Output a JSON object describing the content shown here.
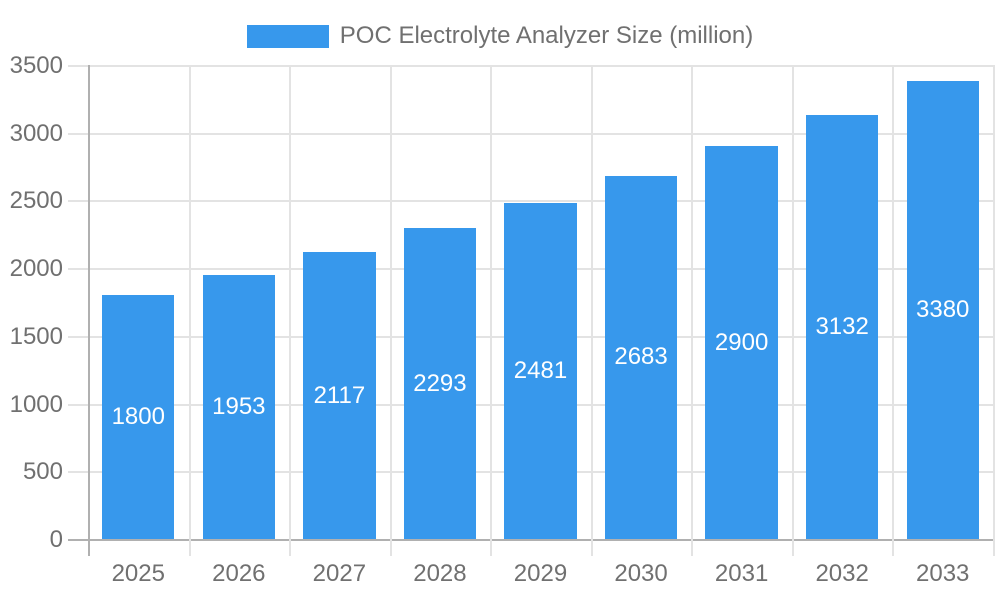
{
  "legend": {
    "label": "POC Electrolyte Analyzer Size (million)"
  },
  "colors": {
    "bar": "#3798EC",
    "grid": "#E3E3E3",
    "axis": "#B0B0B0",
    "text": "#707070",
    "value_text": "#FFFFFF",
    "background": "#FFFFFF"
  },
  "chart_data": {
    "type": "bar",
    "title": "POC Electrolyte Analyzer Size (million)",
    "categories": [
      "2025",
      "2026",
      "2027",
      "2028",
      "2029",
      "2030",
      "2031",
      "2032",
      "2033"
    ],
    "values": [
      1800,
      1953,
      2117,
      2293,
      2481,
      2683,
      2900,
      3132,
      3380
    ],
    "series_name": "POC Electrolyte Analyzer Size (million)",
    "xlabel": "",
    "ylabel": "",
    "ylim": [
      0,
      3500
    ],
    "yticks": [
      0,
      500,
      1000,
      1500,
      2000,
      2500,
      3000,
      3500
    ],
    "grid": true,
    "legend_position": "top",
    "bar_labels": [
      "1800",
      "1953",
      "2117",
      "2293",
      "2481",
      "2683",
      "2900",
      "3132",
      "3380"
    ],
    "bar_label_position": "center"
  }
}
